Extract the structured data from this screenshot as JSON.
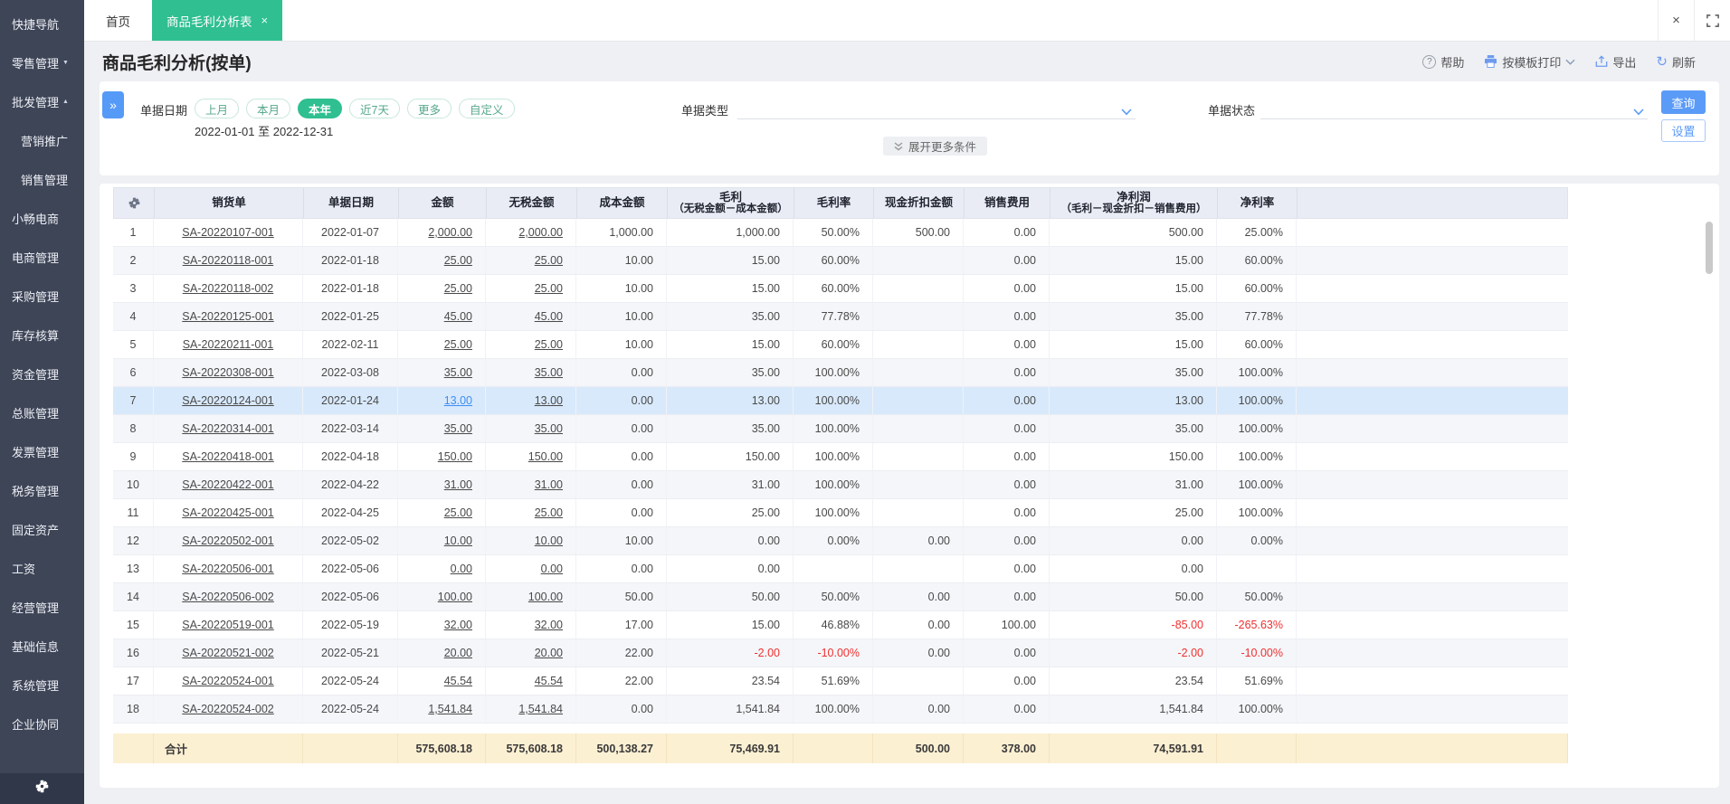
{
  "window": {
    "close": "×"
  },
  "tabs": {
    "home": "首页",
    "report": "商品毛利分析表",
    "report_close": "×"
  },
  "sidebar": {
    "items": [
      {
        "label": "快捷导航"
      },
      {
        "label": "零售管理",
        "arrow": "down"
      },
      {
        "label": "批发管理",
        "arrow": "up"
      },
      {
        "label": "营销推广",
        "sub": true
      },
      {
        "label": "销售管理",
        "sub": true
      },
      {
        "label": "小畅电商"
      },
      {
        "label": "电商管理"
      },
      {
        "label": "采购管理"
      },
      {
        "label": "库存核算"
      },
      {
        "label": "资金管理"
      },
      {
        "label": "总账管理"
      },
      {
        "label": "发票管理"
      },
      {
        "label": "税务管理"
      },
      {
        "label": "固定资产"
      },
      {
        "label": "工资"
      },
      {
        "label": "经营管理"
      },
      {
        "label": "基础信息"
      },
      {
        "label": "系统管理"
      },
      {
        "label": "企业协同"
      }
    ]
  },
  "page": {
    "title": "商品毛利分析(按单)"
  },
  "toolbar": {
    "help": "帮助",
    "print": "按模板打印",
    "export": "导出",
    "refresh": "刷新"
  },
  "filters": {
    "date_label": "单据日期",
    "date_presets": [
      "上月",
      "本月",
      "本年",
      "近7天",
      "更多",
      "自定义"
    ],
    "active_preset": "本年",
    "date_range": "2022-01-01 至 2022-12-31",
    "type_label": "单据类型",
    "status_label": "单据状态",
    "search_button": "查询",
    "settings_button": "设置",
    "expand_button": "展开更多条件",
    "collapse_glyph": "»"
  },
  "table": {
    "columns": [
      {
        "label": "销货单"
      },
      {
        "label": "单据日期"
      },
      {
        "label": "金额"
      },
      {
        "label": "无税金额"
      },
      {
        "label": "成本金额"
      },
      {
        "label": "毛利",
        "sub": "（无税金额－成本金额）"
      },
      {
        "label": "毛利率"
      },
      {
        "label": "现金折扣金额"
      },
      {
        "label": "销售费用"
      },
      {
        "label": "净利润",
        "sub": "（毛利－现金折扣－销售费用）"
      },
      {
        "label": "净利率"
      }
    ],
    "rows": [
      {
        "num": "1",
        "order": "SA-20220107-001",
        "date": "2022-01-07",
        "amount": "2,000.00",
        "tax_free_amount": "2,000.00",
        "cost": "1,000.00",
        "gross_profit": "1,000.00",
        "gross_margin": "50.00%",
        "cash_discount": "500.00",
        "selling_expense": "0.00",
        "net_profit": "500.00",
        "net_margin": "25.00%"
      },
      {
        "num": "2",
        "order": "SA-20220118-001",
        "date": "2022-01-18",
        "amount": "25.00",
        "tax_free_amount": "25.00",
        "cost": "10.00",
        "gross_profit": "15.00",
        "gross_margin": "60.00%",
        "cash_discount": "",
        "selling_expense": "0.00",
        "net_profit": "15.00",
        "net_margin": "60.00%"
      },
      {
        "num": "3",
        "order": "SA-20220118-002",
        "date": "2022-01-18",
        "amount": "25.00",
        "tax_free_amount": "25.00",
        "cost": "10.00",
        "gross_profit": "15.00",
        "gross_margin": "60.00%",
        "cash_discount": "",
        "selling_expense": "0.00",
        "net_profit": "15.00",
        "net_margin": "60.00%"
      },
      {
        "num": "4",
        "order": "SA-20220125-001",
        "date": "2022-01-25",
        "amount": "45.00",
        "tax_free_amount": "45.00",
        "cost": "10.00",
        "gross_profit": "35.00",
        "gross_margin": "77.78%",
        "cash_discount": "",
        "selling_expense": "0.00",
        "net_profit": "35.00",
        "net_margin": "77.78%"
      },
      {
        "num": "5",
        "order": "SA-20220211-001",
        "date": "2022-02-11",
        "amount": "25.00",
        "tax_free_amount": "25.00",
        "cost": "10.00",
        "gross_profit": "15.00",
        "gross_margin": "60.00%",
        "cash_discount": "",
        "selling_expense": "0.00",
        "net_profit": "15.00",
        "net_margin": "60.00%"
      },
      {
        "num": "6",
        "order": "SA-20220308-001",
        "date": "2022-03-08",
        "amount": "35.00",
        "tax_free_amount": "35.00",
        "cost": "0.00",
        "gross_profit": "35.00",
        "gross_margin": "100.00%",
        "cash_discount": "",
        "selling_expense": "0.00",
        "net_profit": "35.00",
        "net_margin": "100.00%"
      },
      {
        "num": "7",
        "order": "SA-20220124-001",
        "date": "2022-01-24",
        "amount": "13.00",
        "tax_free_amount": "13.00",
        "cost": "0.00",
        "gross_profit": "13.00",
        "gross_margin": "100.00%",
        "cash_discount": "",
        "selling_expense": "0.00",
        "net_profit": "13.00",
        "net_margin": "100.00%",
        "selected": true
      },
      {
        "num": "8",
        "order": "SA-20220314-001",
        "date": "2022-03-14",
        "amount": "35.00",
        "tax_free_amount": "35.00",
        "cost": "0.00",
        "gross_profit": "35.00",
        "gross_margin": "100.00%",
        "cash_discount": "",
        "selling_expense": "0.00",
        "net_profit": "35.00",
        "net_margin": "100.00%"
      },
      {
        "num": "9",
        "order": "SA-20220418-001",
        "date": "2022-04-18",
        "amount": "150.00",
        "tax_free_amount": "150.00",
        "cost": "0.00",
        "gross_profit": "150.00",
        "gross_margin": "100.00%",
        "cash_discount": "",
        "selling_expense": "0.00",
        "net_profit": "150.00",
        "net_margin": "100.00%"
      },
      {
        "num": "10",
        "order": "SA-20220422-001",
        "date": "2022-04-22",
        "amount": "31.00",
        "tax_free_amount": "31.00",
        "cost": "0.00",
        "gross_profit": "31.00",
        "gross_margin": "100.00%",
        "cash_discount": "",
        "selling_expense": "0.00",
        "net_profit": "31.00",
        "net_margin": "100.00%"
      },
      {
        "num": "11",
        "order": "SA-20220425-001",
        "date": "2022-04-25",
        "amount": "25.00",
        "tax_free_amount": "25.00",
        "cost": "0.00",
        "gross_profit": "25.00",
        "gross_margin": "100.00%",
        "cash_discount": "",
        "selling_expense": "0.00",
        "net_profit": "25.00",
        "net_margin": "100.00%"
      },
      {
        "num": "12",
        "order": "SA-20220502-001",
        "date": "2022-05-02",
        "amount": "10.00",
        "tax_free_amount": "10.00",
        "cost": "10.00",
        "gross_profit": "0.00",
        "gross_margin": "0.00%",
        "cash_discount": "0.00",
        "selling_expense": "0.00",
        "net_profit": "0.00",
        "net_margin": "0.00%"
      },
      {
        "num": "13",
        "order": "SA-20220506-001",
        "date": "2022-05-06",
        "amount": "0.00",
        "tax_free_amount": "0.00",
        "cost": "0.00",
        "gross_profit": "0.00",
        "gross_margin": "",
        "cash_discount": "",
        "selling_expense": "0.00",
        "net_profit": "0.00",
        "net_margin": ""
      },
      {
        "num": "14",
        "order": "SA-20220506-002",
        "date": "2022-05-06",
        "amount": "100.00",
        "tax_free_amount": "100.00",
        "cost": "50.00",
        "gross_profit": "50.00",
        "gross_margin": "50.00%",
        "cash_discount": "0.00",
        "selling_expense": "0.00",
        "net_profit": "50.00",
        "net_margin": "50.00%"
      },
      {
        "num": "15",
        "order": "SA-20220519-001",
        "date": "2022-05-19",
        "amount": "32.00",
        "tax_free_amount": "32.00",
        "cost": "17.00",
        "gross_profit": "15.00",
        "gross_margin": "46.88%",
        "cash_discount": "0.00",
        "selling_expense": "100.00",
        "net_profit": "-85.00",
        "net_margin": "-265.63%"
      },
      {
        "num": "16",
        "order": "SA-20220521-002",
        "date": "2022-05-21",
        "amount": "20.00",
        "tax_free_amount": "20.00",
        "cost": "22.00",
        "gross_profit": "-2.00",
        "gross_margin": "-10.00%",
        "cash_discount": "0.00",
        "selling_expense": "0.00",
        "net_profit": "-2.00",
        "net_margin": "-10.00%"
      },
      {
        "num": "17",
        "order": "SA-20220524-001",
        "date": "2022-05-24",
        "amount": "45.54",
        "tax_free_amount": "45.54",
        "cost": "22.00",
        "gross_profit": "23.54",
        "gross_margin": "51.69%",
        "cash_discount": "",
        "selling_expense": "0.00",
        "net_profit": "23.54",
        "net_margin": "51.69%"
      },
      {
        "num": "18",
        "order": "SA-20220524-002",
        "date": "2022-05-24",
        "amount": "1,541.84",
        "tax_free_amount": "1,541.84",
        "cost": "0.00",
        "gross_profit": "1,541.84",
        "gross_margin": "100.00%",
        "cash_discount": "0.00",
        "selling_expense": "0.00",
        "net_profit": "1,541.84",
        "net_margin": "100.00%"
      }
    ],
    "total": {
      "label": "合计",
      "amount": "575,608.18",
      "tax_free_amount": "575,608.18",
      "cost": "500,138.27",
      "gross_profit": "75,469.91",
      "gross_margin": "",
      "cash_discount": "500.00",
      "selling_expense": "378.00",
      "net_profit": "74,591.91",
      "net_margin": ""
    }
  },
  "colors": {
    "accent_green": "#2fbf90",
    "accent_blue": "#5b9bf8",
    "negative_red": "#f03030",
    "total_row_bg": "#fcf0d3",
    "selected_row_bg": "#d8e9fb"
  }
}
